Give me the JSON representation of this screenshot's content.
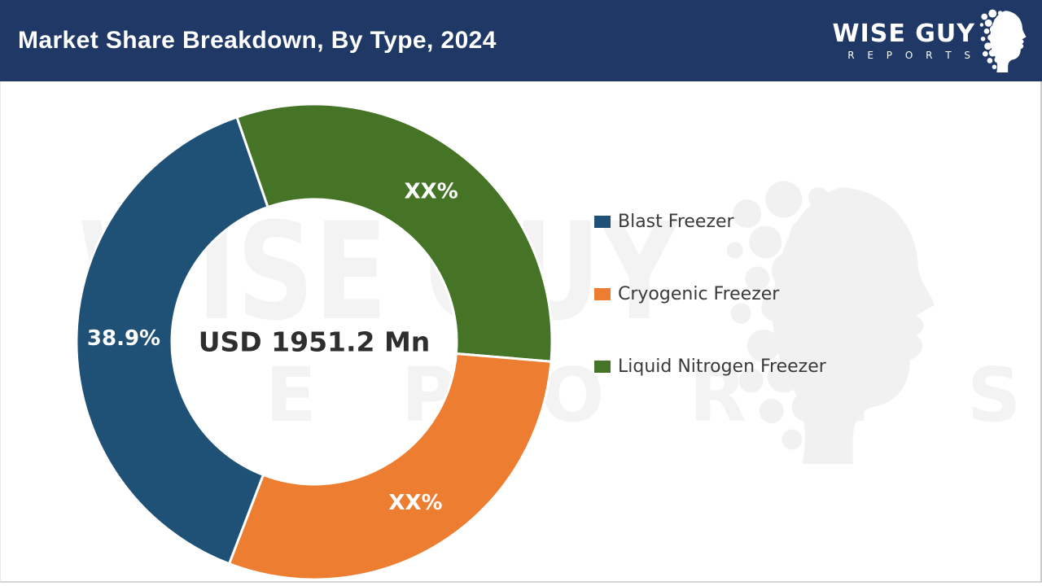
{
  "header": {
    "title": "Market Share Breakdown, By Type, 2024",
    "logo": {
      "name_line": "WISE GUY",
      "reports_line": "R E P O R T S"
    }
  },
  "watermark": {
    "name_line": "WISE GUY",
    "reports_line": "R E P O R T S"
  },
  "chart_data": {
    "type": "pie",
    "subtype": "donut",
    "title": "Market Share Breakdown, By Type, 2024",
    "center_label": "USD 1951.2 Mn",
    "start_angle_deg": -19,
    "inner_radius_ratio": 0.6,
    "legend_position": "right",
    "segments": [
      {
        "label": "Liquid Nitrogen Freezer",
        "value_pct": 31.6,
        "display_label": "XX%",
        "color": "#457426"
      },
      {
        "label": "Cryogenic Freezer",
        "value_pct": 29.5,
        "display_label": "XX%",
        "color": "#ed7d31"
      },
      {
        "label": "Blast Freezer",
        "value_pct": 38.9,
        "display_label": "38.9%",
        "color": "#1f5075"
      }
    ],
    "legend": [
      {
        "label": "Blast Freezer",
        "color": "#1f5075"
      },
      {
        "label": "Cryogenic Freezer",
        "color": "#ed7d31"
      },
      {
        "label": "Liquid Nitrogen Freezer",
        "color": "#457426"
      }
    ],
    "colors": {
      "header_bg": "#1f3866",
      "center_text": "#2e2e2e",
      "segment_label_text": "#ffffff"
    }
  }
}
